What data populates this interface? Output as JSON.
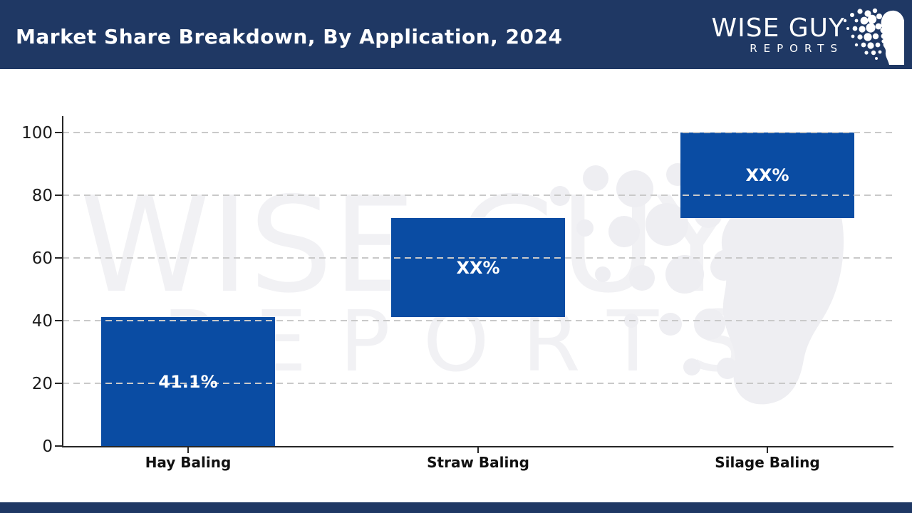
{
  "header": {
    "title": "Market Share Breakdown, By Application, 2024",
    "logo": {
      "wordmark": "WISE GUY",
      "subtext": "REPORTS"
    }
  },
  "watermark": {
    "wordmark": "WISE GUY",
    "subtext": "REPORTS"
  },
  "chart_data": {
    "type": "bar",
    "variant": "floating-cumulative-bars",
    "title": "Market Share Breakdown, By Application, 2024",
    "categories": [
      "Hay Baling",
      "Straw Baling",
      "Silage Baling"
    ],
    "bars": [
      {
        "category": "Hay Baling",
        "start": 0,
        "end": 41.1,
        "label": "41.1%"
      },
      {
        "category": "Straw Baling",
        "start": 41.1,
        "end": 72.7,
        "label": "XX%"
      },
      {
        "category": "Silage Baling",
        "start": 72.7,
        "end": 100,
        "label": "XX%"
      }
    ],
    "y_ticks": [
      0,
      20,
      40,
      60,
      80,
      100
    ],
    "ylim": [
      0,
      105
    ],
    "xlabel": "",
    "ylabel": "",
    "grid": {
      "axis": "y",
      "style": "dashed",
      "on": true
    },
    "legend": "none",
    "bar_color": "#0a4ca3",
    "value_label_color": "#ffffff"
  },
  "colors": {
    "header_bg": "#1f3864",
    "footer_bg": "#1f3864",
    "bar_fill": "#0a4ca3",
    "axis": "#262626",
    "gridline": "#c9c9c9",
    "watermark": "#f1f1f4",
    "page_bg": "#ffffff"
  }
}
